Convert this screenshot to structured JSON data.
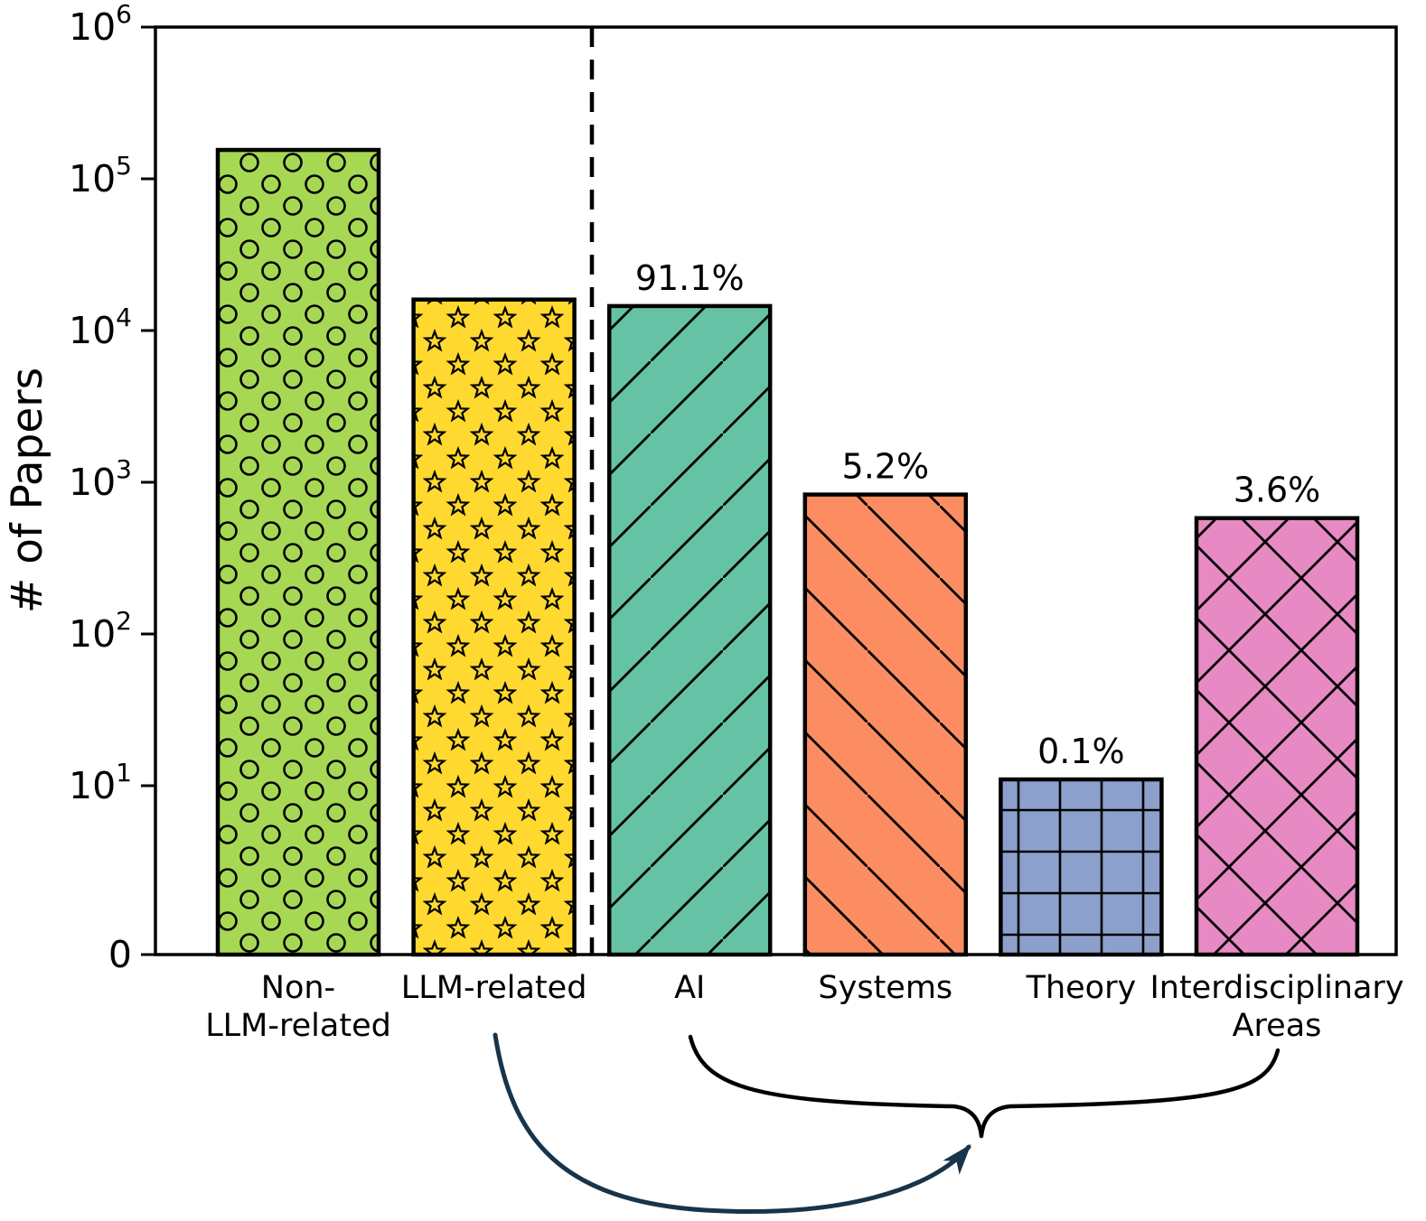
{
  "chart_data": {
    "type": "bar",
    "title": "",
    "ylabel": "# of Papers",
    "yscale": "log",
    "ylim": [
      0,
      1000000
    ],
    "ytick_labels": [
      "0",
      "10^1",
      "10^2",
      "10^3",
      "10^4",
      "10^5",
      "10^6"
    ],
    "categories": [
      "Non-\nLLM-related",
      "LLM-related",
      "AI",
      "Systems",
      "Theory",
      "Interdisciplinary\nAreas"
    ],
    "values": [
      155000,
      16000,
      14500,
      830,
      11,
      580
    ],
    "bar_labels": [
      "",
      "",
      "91.1%",
      "5.2%",
      "0.1%",
      "3.6%"
    ],
    "colors": [
      "#A6D854",
      "#FFD92F",
      "#66C2A5",
      "#FC8D62",
      "#8DA0CB",
      "#E78AC3"
    ],
    "hatches": [
      "circle",
      "star",
      "slash",
      "backslash",
      "grid",
      "cross"
    ],
    "divider_after": "LLM-related",
    "brace_color": "#000000",
    "annotation_arrow_color": "#17344A",
    "grid": false,
    "legend": false
  }
}
